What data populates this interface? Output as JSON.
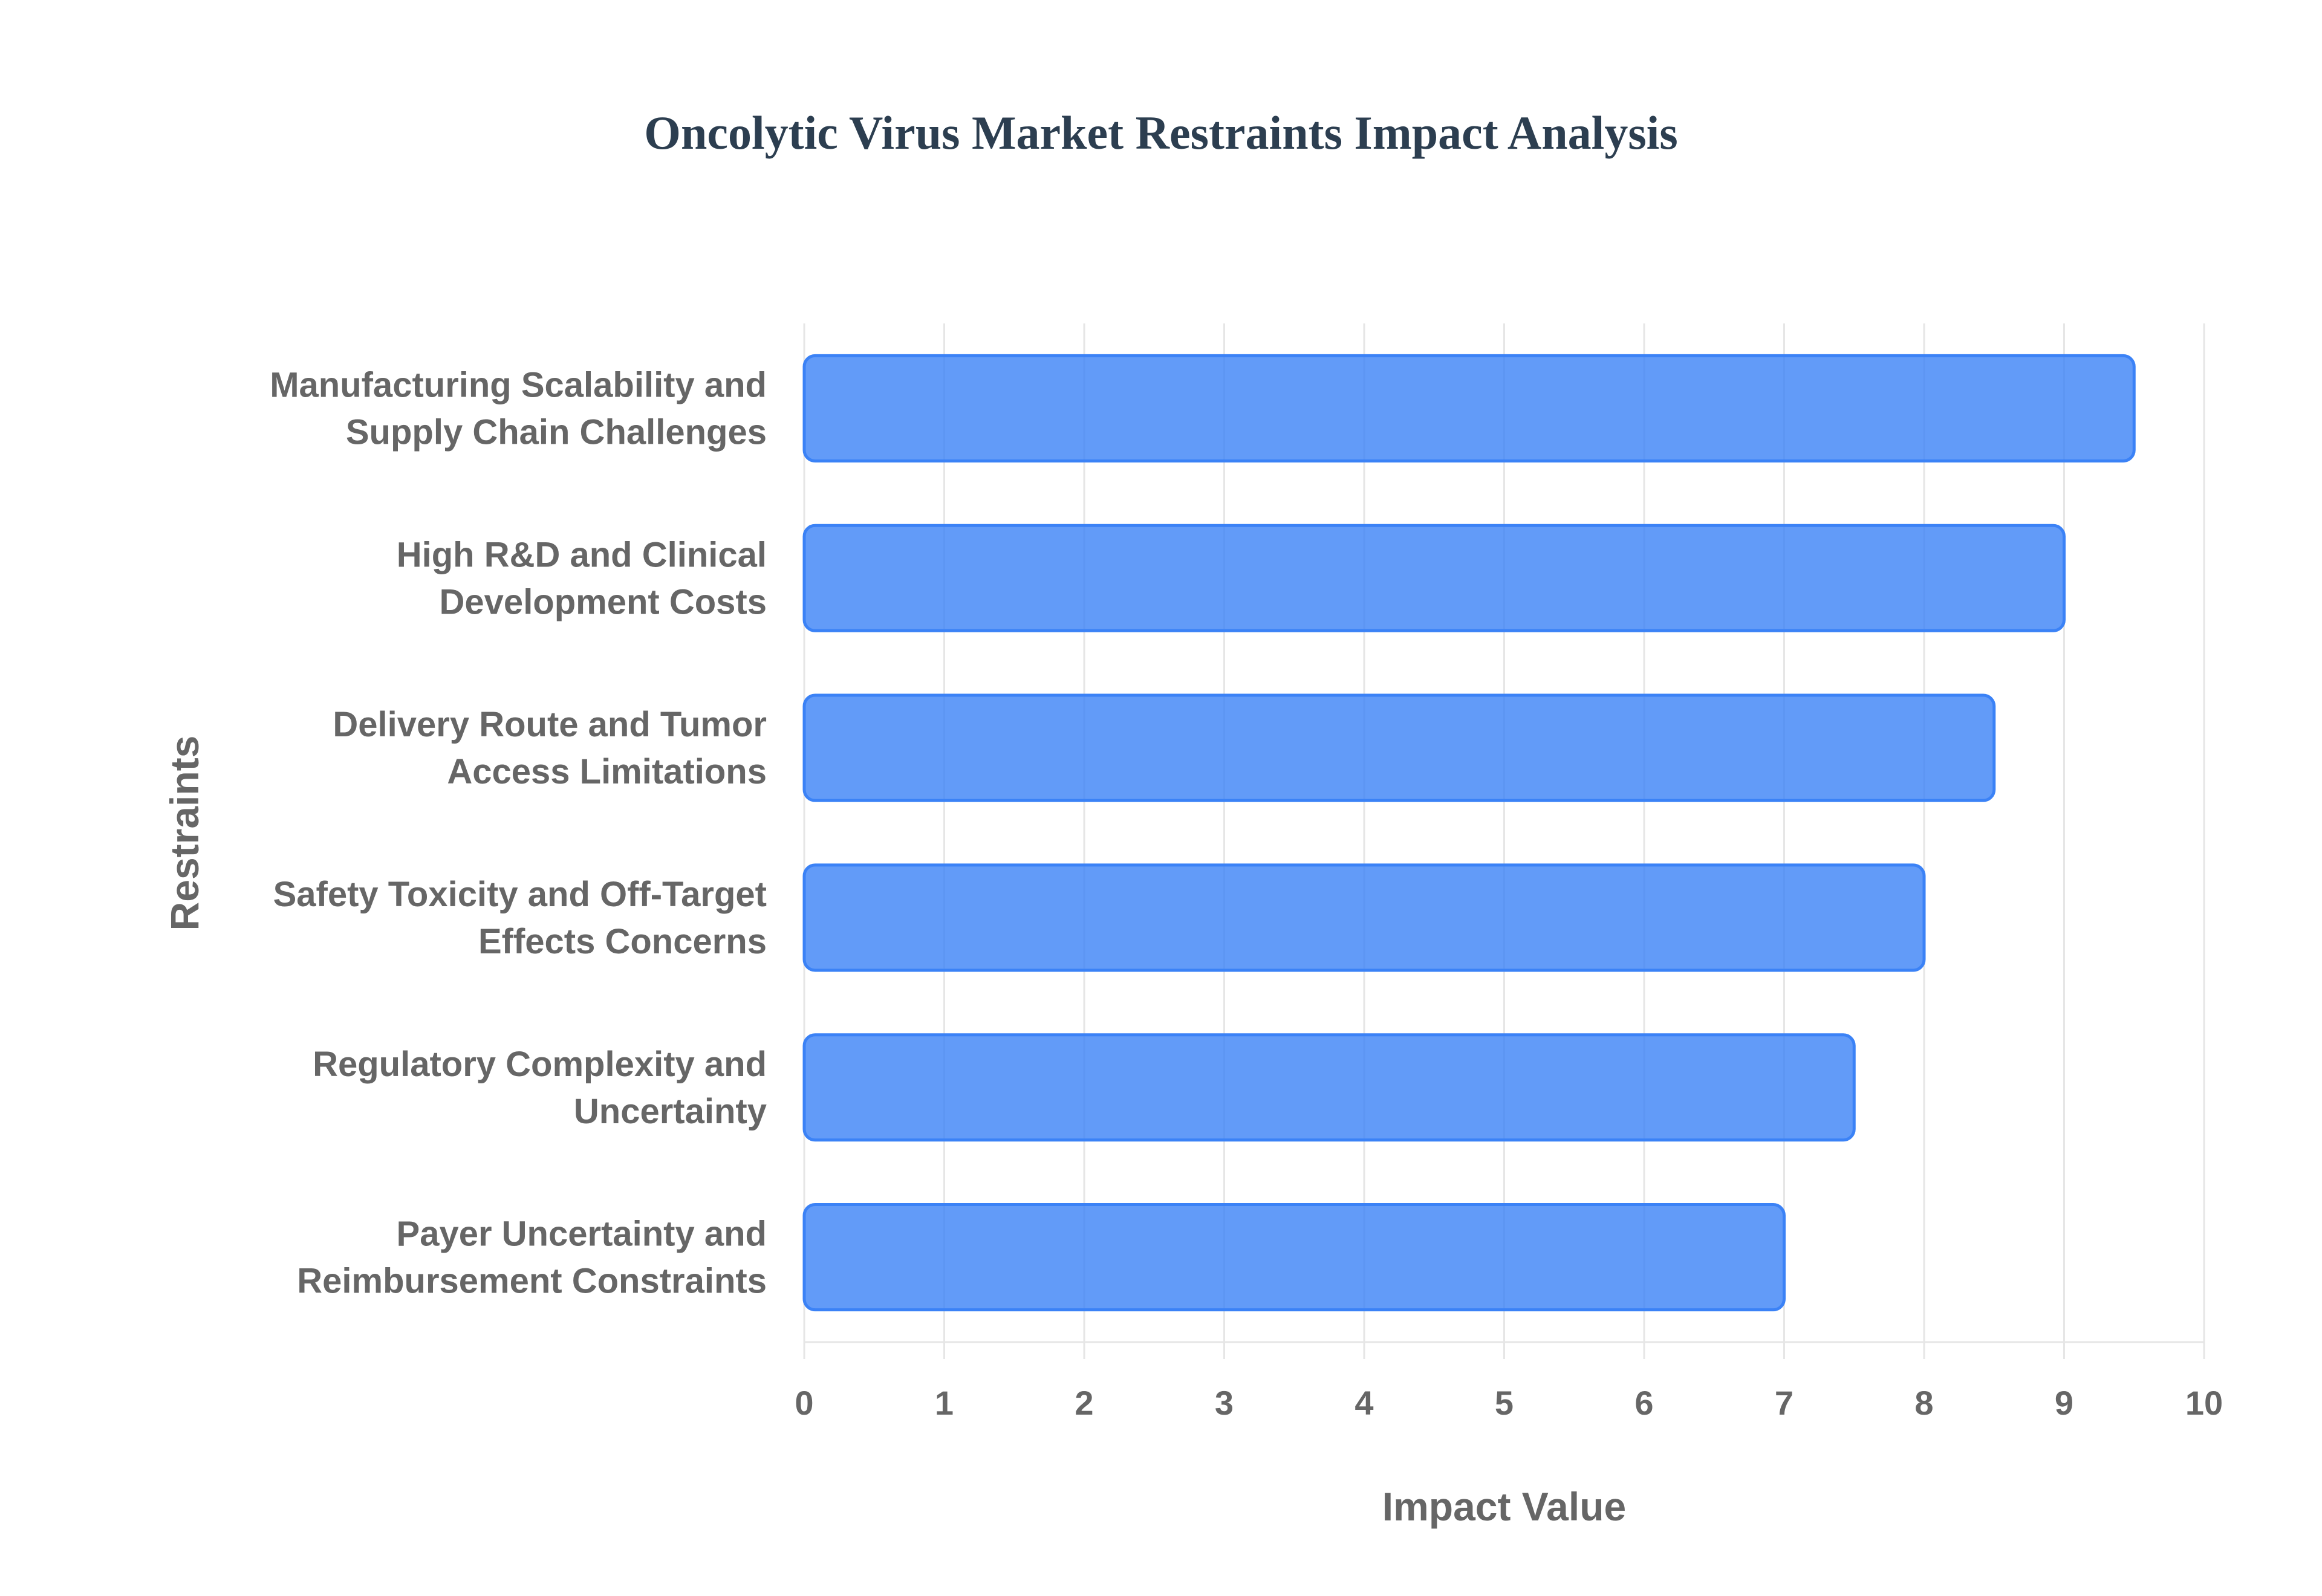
{
  "title": "Oncolytic Virus Market Restraints Impact Analysis",
  "chart_data": {
    "type": "bar",
    "orientation": "horizontal",
    "title": "Oncolytic Virus Market Restraints Impact Analysis",
    "xlabel": "Impact Value",
    "ylabel": "Restraints",
    "xlim": [
      0,
      10
    ],
    "xticks": [
      "0",
      "1",
      "2",
      "3",
      "4",
      "5",
      "6",
      "7",
      "8",
      "9",
      "10"
    ],
    "grid": true,
    "legend": "none",
    "bar_color": "#3b82f6",
    "categories": [
      [
        "Manufacturing Scalability and",
        "Supply Chain Challenges"
      ],
      [
        "High R&D and Clinical",
        "Development Costs"
      ],
      [
        "Delivery Route and Tumor",
        "Access Limitations"
      ],
      [
        "Safety Toxicity and Off-Target",
        "Effects Concerns"
      ],
      [
        "Regulatory Complexity and",
        "Uncertainty"
      ],
      [
        "Payer Uncertainty and",
        "Reimbursement Constraints"
      ]
    ],
    "values": [
      9.5,
      9.0,
      8.5,
      8.0,
      7.5,
      7.0
    ]
  }
}
